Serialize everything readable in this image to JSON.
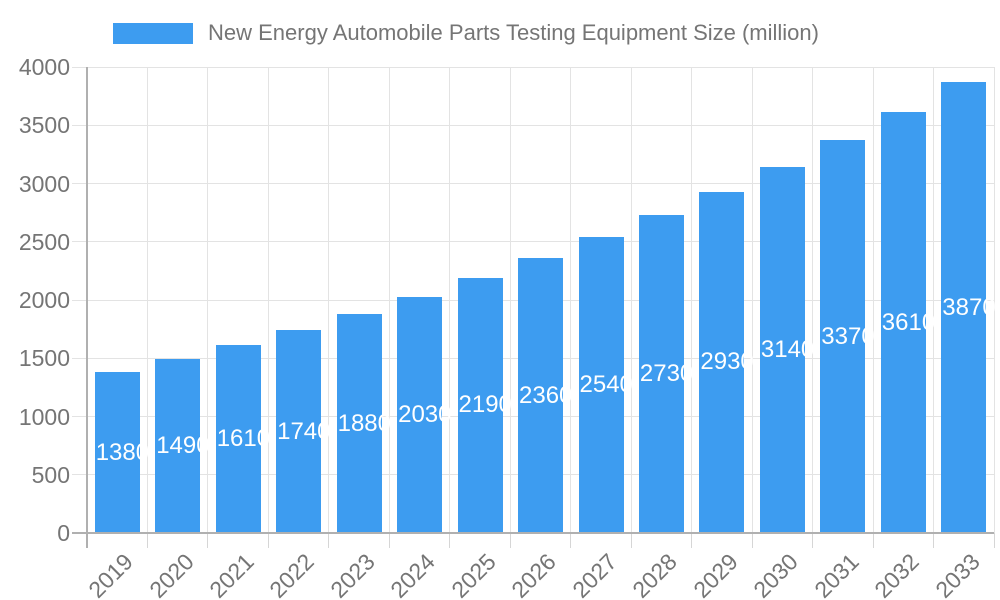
{
  "chart_data": {
    "type": "bar",
    "title": "New Energy Automobile Parts Testing Equipment Size (million)",
    "categories": [
      "2019",
      "2020",
      "2021",
      "2022",
      "2023",
      "2024",
      "2025",
      "2026",
      "2027",
      "2028",
      "2029",
      "2030",
      "2031",
      "2032",
      "2033"
    ],
    "values": [
      1380,
      1490,
      1610,
      1740,
      1880,
      2030,
      2190,
      2360,
      2540,
      2730,
      2930,
      3140,
      3370,
      3610,
      3870
    ],
    "xlabel": "",
    "ylabel": "",
    "ylim": [
      0,
      4000
    ],
    "y_ticks": [
      0,
      500,
      1000,
      1500,
      2000,
      2500,
      3000,
      3500,
      4000
    ],
    "grid": true,
    "legend_position": "top-left",
    "bar_labels_position": "inside-middle",
    "colors": {
      "bar": "#3d9cf0",
      "bar_label": "#ffffff",
      "axis_text": "#757575",
      "title_text": "#757575",
      "grid_line": "#e3e3e3",
      "tick_line": "#d6d6d6",
      "axis_line": "#b0b0b0",
      "background": "#ffffff"
    }
  }
}
